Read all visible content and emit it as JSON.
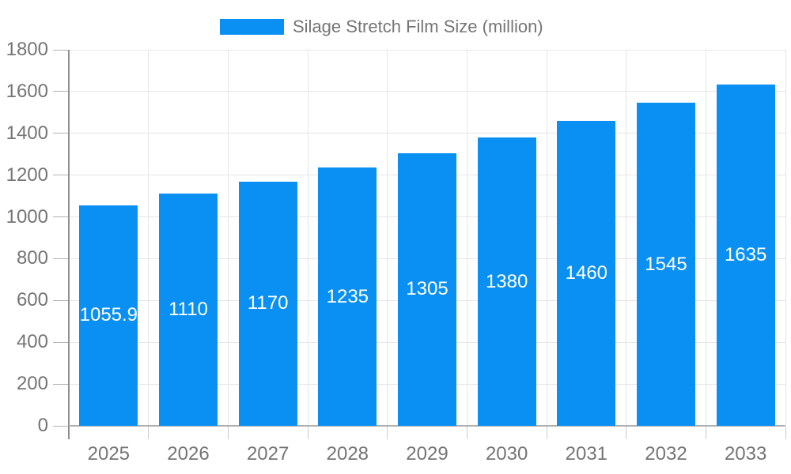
{
  "chart_data": {
    "type": "bar",
    "title": "",
    "legend": "Silage Stretch Film Size (million)",
    "legend_position": "top",
    "categories": [
      "2025",
      "2026",
      "2027",
      "2028",
      "2029",
      "2030",
      "2031",
      "2032",
      "2033"
    ],
    "values": [
      1055.9,
      1110,
      1170,
      1235,
      1305,
      1380,
      1460,
      1545,
      1635
    ],
    "value_labels": [
      "1055.9",
      "1110",
      "1170",
      "1235",
      "1305",
      "1380",
      "1460",
      "1545",
      "1635"
    ],
    "xlabel": "",
    "ylabel": "",
    "ylim": [
      0,
      1800
    ],
    "yticks": [
      0,
      200,
      400,
      600,
      800,
      1000,
      1200,
      1400,
      1600,
      1800
    ],
    "grid": true,
    "colors": {
      "bar": "#0a90f3",
      "axis_text": "#757575",
      "gridline": "#e6e6e6",
      "y_axis_line": "#8f8f8f",
      "x_axis_line": "#b0b0b0",
      "y_tick": "#b3b3b3",
      "x_tick": "#cccccc",
      "value_label": "#ffffff",
      "background": "#ffffff"
    }
  }
}
